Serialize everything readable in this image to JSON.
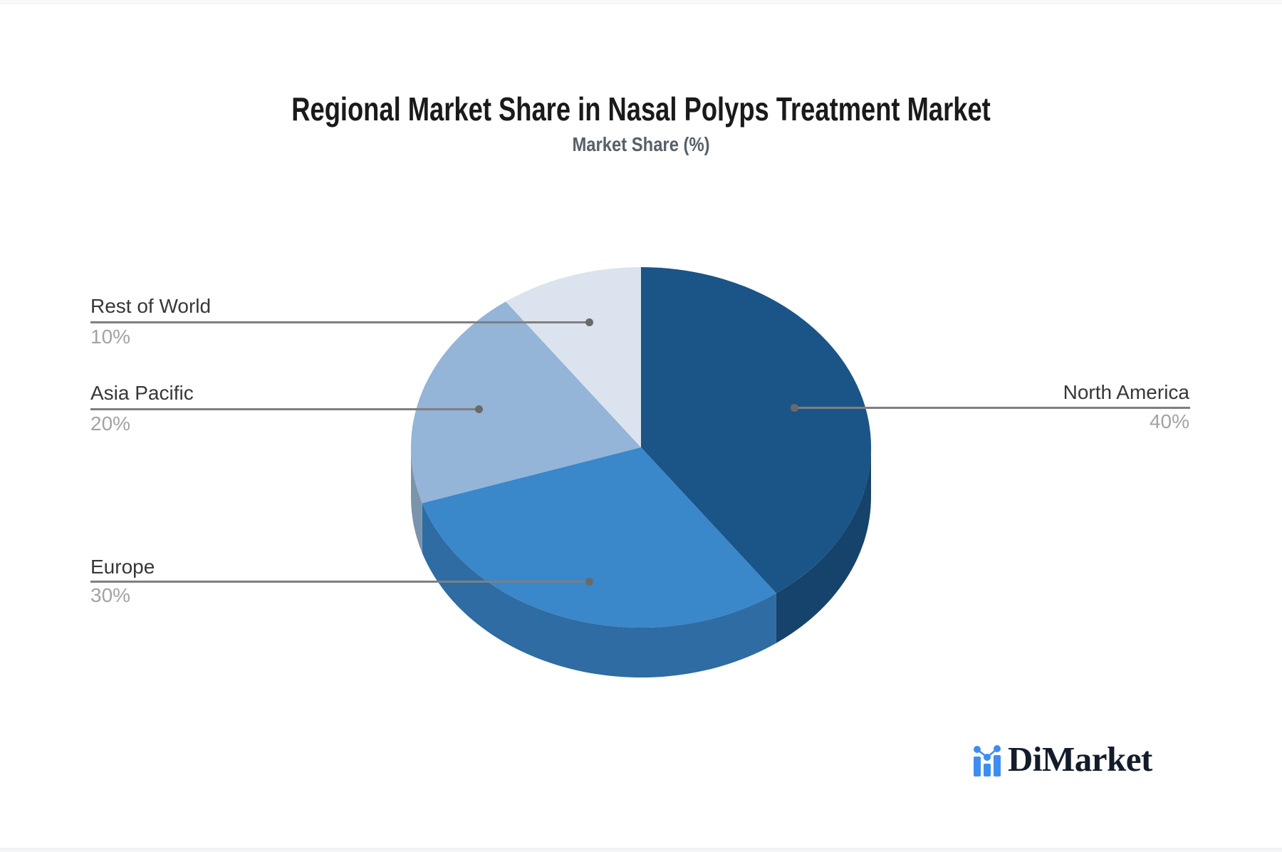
{
  "header": {
    "title": "Regional Market Share in Nasal Polyps Treatment Market",
    "subtitle": "Market Share (%)"
  },
  "chart_data": {
    "type": "pie",
    "style": "3d",
    "title": "Regional Market Share in Nasal Polyps Treatment Market",
    "subtitle": "Market Share (%)",
    "unit": "%",
    "start_angle": "12 o'clock",
    "direction": "clockwise",
    "legend_position": "leader-line labels (left and right of pie)",
    "slices": [
      {
        "name": "North America",
        "value": 40,
        "value_label": "40%",
        "color": "#1b5587",
        "side_color": "#16436b",
        "label_side": "right"
      },
      {
        "name": "Europe",
        "value": 30,
        "value_label": "30%",
        "color": "#3a87ca",
        "side_color": "#2e6ca3",
        "label_side": "left"
      },
      {
        "name": "Asia Pacific",
        "value": 20,
        "value_label": "20%",
        "color": "#94b4d8",
        "side_color": "#7b94ac",
        "label_side": "left"
      },
      {
        "name": "Rest of World",
        "value": 10,
        "value_label": "10%",
        "color": "#dbe3ee",
        "side_color": "#c6d1e0",
        "label_side": "left"
      }
    ],
    "leader_line_color": "#7f7f7f",
    "label_color": "#373737",
    "value_color": "#a3a3a3"
  },
  "branding": {
    "logo_text": "DiMarket",
    "logo_icon": "bar-line-chart-icon",
    "text_color": "#131c2b",
    "icon_color": "#3e8ef2"
  }
}
